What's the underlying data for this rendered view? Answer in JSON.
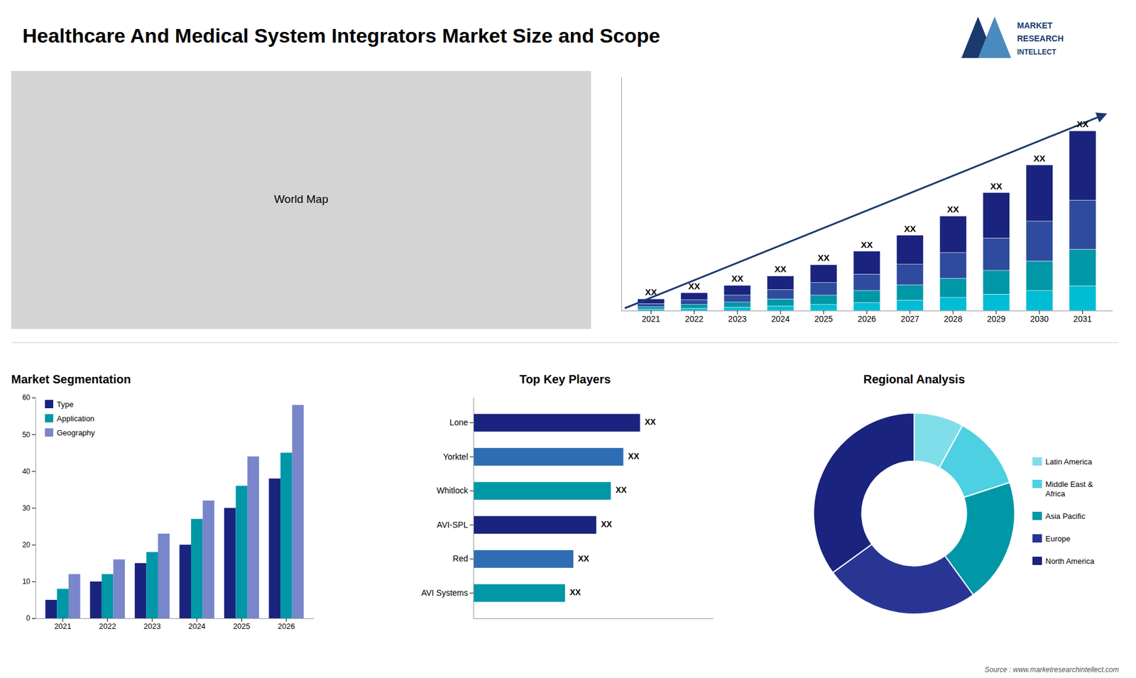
{
  "title": "Healthcare And Medical System Integrators Market Size and Scope",
  "annotations": [
    "MARKET",
    "RESEARCH",
    "INTELLECT",
    "Source : www.marketresearchintellect.com"
  ],
  "chart_data": [
    {
      "type": "map",
      "title": "World Map"
    },
    {
      "type": "bar",
      "stacked": true,
      "categories": [
        "2021",
        "2022",
        "2023",
        "2024",
        "2025",
        "2026",
        "2027",
        "2028",
        "2029",
        "2030",
        "2031"
      ],
      "series": [
        {
          "color": "#00bcd4",
          "values": [
            0.3,
            0.5,
            0.7,
            1.0,
            1.3,
            1.7,
            2.2,
            2.8,
            3.5,
            4.3,
            5.3
          ]
        },
        {
          "color": "#0097a7",
          "values": [
            0.5,
            0.8,
            1.1,
            1.5,
            2.0,
            2.6,
            3.3,
            4.1,
            5.1,
            6.3,
            7.8
          ]
        },
        {
          "color": "#2e4b9e",
          "values": [
            0.7,
            1.0,
            1.5,
            2.0,
            2.7,
            3.5,
            4.4,
            5.5,
            6.9,
            8.5,
            10.5
          ]
        },
        {
          "color": "#1a237e",
          "values": [
            1.0,
            1.5,
            2.1,
            2.9,
            3.8,
            4.9,
            6.2,
            7.8,
            9.7,
            12.0,
            14.8
          ]
        }
      ],
      "ylim": [
        0,
        49.92
      ],
      "yticks": [],
      "tick_labels": "x",
      "grid": false,
      "annotations": [
        "XX",
        "XX",
        "XX",
        "XX",
        "XX",
        "XX",
        "XX",
        "XX",
        "XX",
        "XX",
        "XX"
      ]
    },
    {
      "type": "bar",
      "title": "Market Segmentation",
      "categories": [
        "2021",
        "2022",
        "2023",
        "2024",
        "2025",
        "2026"
      ],
      "series": [
        {
          "name": "Type",
          "color": "#1a237e",
          "values": [
            5,
            10,
            15,
            20,
            30,
            38
          ]
        },
        {
          "name": "Application",
          "color": "#0097a7",
          "values": [
            8,
            12,
            18,
            27,
            36,
            45
          ]
        },
        {
          "name": "Geography",
          "color": "#7986cb",
          "values": [
            12,
            16,
            23,
            32,
            44,
            58
          ]
        }
      ],
      "ylim": [
        0,
        60
      ],
      "yticks": [
        0,
        10,
        20,
        30,
        40,
        50,
        60
      ],
      "grid": false,
      "legend": "upper left"
    },
    {
      "type": "bar",
      "orientation": "horizontal",
      "title": "Top Key Players",
      "categories": [
        "Lone",
        "Yorktel",
        "Whitlock",
        "AVI-SPL",
        "Red",
        "AVI Systems"
      ],
      "values": [
        80,
        72,
        66,
        59,
        48,
        44
      ],
      "colors": [
        "#1a237e",
        "#2e6db4",
        "#0097a7",
        "#1a237e",
        "#2e6db4",
        "#0097a7"
      ],
      "xlim": [
        0,
        115
      ],
      "xticks": [],
      "tick_labels": "y",
      "grid": false,
      "annotations": [
        "XX",
        "XX",
        "XX",
        "XX",
        "XX",
        "XX"
      ]
    },
    {
      "type": "pie",
      "title": "Regional Analysis",
      "labels": [
        "Latin America",
        "Middle East &\nAfrica",
        "Asia Pacific",
        "Europe",
        "North America"
      ],
      "values": [
        8,
        12,
        20,
        25,
        35
      ],
      "colors": [
        "#80deea",
        "#4dd0e1",
        "#0097a7",
        "#283593",
        "#1a237e"
      ],
      "legend": "right"
    }
  ]
}
